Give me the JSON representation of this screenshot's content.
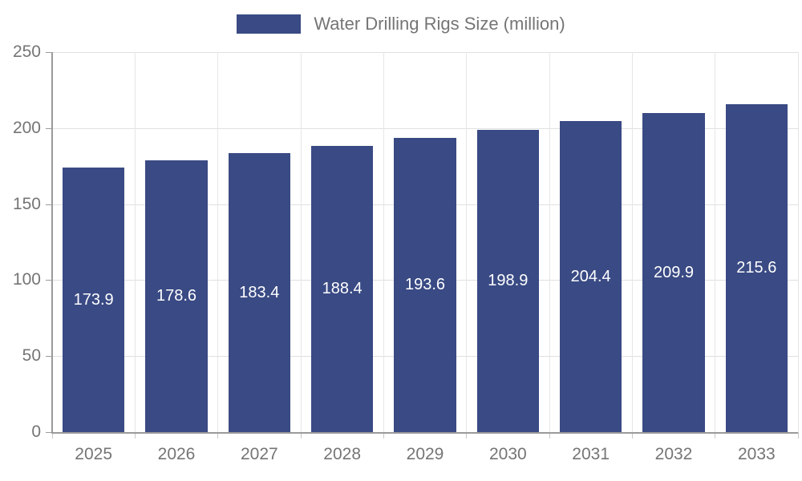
{
  "chart_data": {
    "type": "bar",
    "title": "Water Drilling Rigs Size (million)",
    "legend": [
      "Water Drilling Rigs Size (million)"
    ],
    "legend_position": "top-center",
    "categories": [
      "2025",
      "2026",
      "2027",
      "2028",
      "2029",
      "2030",
      "2031",
      "2032",
      "2033"
    ],
    "series": [
      {
        "name": "Water Drilling Rigs Size (million)",
        "values": [
          173.9,
          178.6,
          183.4,
          188.4,
          193.6,
          198.9,
          204.4,
          209.9,
          215.6
        ]
      }
    ],
    "bar_labels": [
      "173.9",
      "178.6",
      "183.4",
      "188.4",
      "193.6",
      "198.9",
      "204.4",
      "209.9",
      "215.6"
    ],
    "xlabel": "",
    "ylabel": "",
    "ylim": [
      0,
      250
    ],
    "yticks": [
      0,
      50,
      100,
      150,
      200,
      250
    ],
    "grid": true,
    "colors": {
      "bar": "#394a84",
      "bar_label_text": "#ffffff",
      "axis_text": "#757575",
      "axis_line": "#9a9a9a",
      "gridline": "#e0e0e0",
      "background": "#ffffff"
    }
  }
}
